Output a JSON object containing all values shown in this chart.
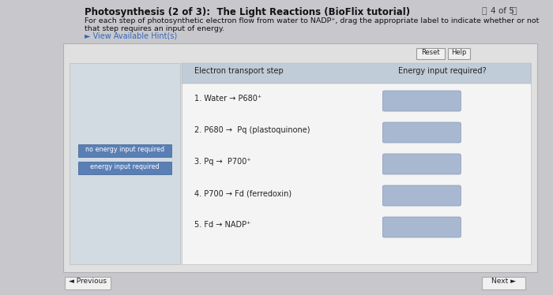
{
  "title": "Photosynthesis (2 of 3):  The Light Reactions (BioFlix tutorial)",
  "page_indicator": "4 of 5",
  "instruction": "For each step of photosynthetic electron flow from water to NADP⁺, drag the appropriate label to indicate whether or not that step requires an input of energy.",
  "hint_text": "► View Available Hint(s)",
  "col1_header": "Electron transport step",
  "col2_header": "Energy input required?",
  "steps": [
    "1. Water → P680⁺",
    "2. P680 →  Pq (plastoquinone)",
    "3. Pq →  P700⁺",
    "4. P700 → Fd (ferredoxin)",
    "5. Fd → NADP⁺"
  ],
  "label1": "no energy input required",
  "label2": "energy input required",
  "btn_reset": "Reset",
  "btn_help": "Help",
  "btn_previous": "◄ Previous",
  "btn_next": "Next ►",
  "bg_color": "#c8c8cc",
  "outer_panel_bg": "#dcdcdc",
  "left_panel_bg": "#d2dae2",
  "right_panel_bg": "#f0f0f0",
  "header_row_bg": "#c0ccd8",
  "drop_box_color": "#a8b8d0",
  "label1_color": "#5a7fb5",
  "label2_color": "#5a7fb5",
  "title_color": "#111111",
  "instruction_color": "#111111",
  "hint_color": "#3366bb",
  "header_color": "#222222",
  "step_color": "#222222",
  "btn_bg": "#f0f0f0",
  "btn_color": "#222222"
}
